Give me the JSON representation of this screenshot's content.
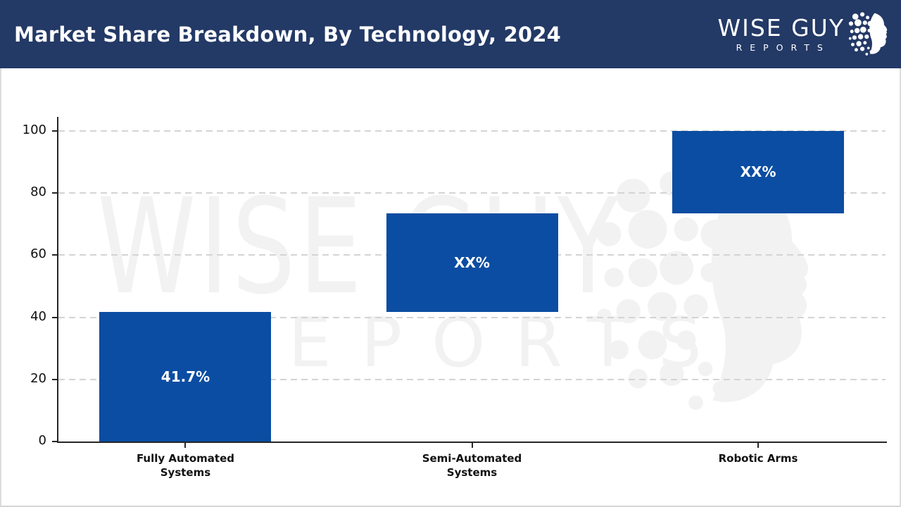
{
  "header": {
    "title": "Market Share Breakdown, By Technology, 2024",
    "logo": {
      "line1": "WISE GUY",
      "line2": "REPORTS"
    }
  },
  "watermark": {
    "line1": "WISE GUY",
    "line2": "REPORTS"
  },
  "chart_data": {
    "type": "bar",
    "variant": "waterfall",
    "title": "Market Share Breakdown, By Technology, 2024",
    "categories": [
      "Fully Automated\nSystems",
      "Semi-Automated\nSystems",
      "Robotic Arms"
    ],
    "segments": [
      {
        "category": "Fully Automated Systems",
        "from": 0,
        "to": 41.7,
        "label": "41.7%"
      },
      {
        "category": "Semi-Automated Systems",
        "from": 41.7,
        "to": 73.5,
        "label": "XX%"
      },
      {
        "category": "Robotic Arms",
        "from": 73.5,
        "to": 100,
        "label": "XX%"
      }
    ],
    "yticks": [
      0,
      20,
      40,
      60,
      80,
      100
    ],
    "ylim": [
      0,
      100
    ],
    "xlabel": "",
    "ylabel": "",
    "grid": "horizontal-dashed",
    "legend": "none",
    "bar_color": "#0b4da2",
    "bar_label_color": "#ffffff"
  },
  "colors": {
    "header_bg": "#233966",
    "bar": "#0b4da2",
    "gridline": "#d4d4d4",
    "axis": "#262626",
    "tick_label": "#111111",
    "watermark": "#f2f2f2"
  }
}
